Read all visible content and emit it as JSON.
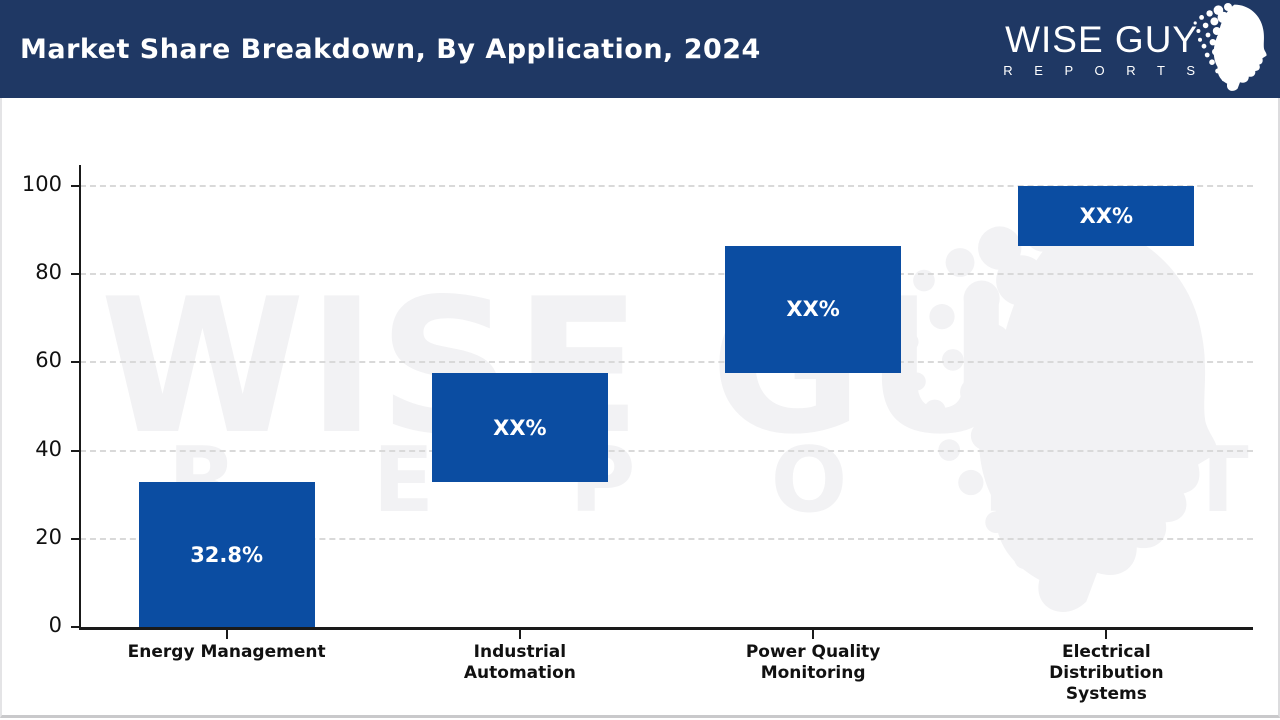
{
  "header": {
    "title": "Market Share Breakdown, By Application, 2024",
    "bg_color": "#1f3864",
    "logo": {
      "name": "WISE GUY",
      "subtitle": "R E P O R T S"
    }
  },
  "watermark": {
    "name": "WISE GUY",
    "subtitle": "R E P O R T S"
  },
  "chart_data": {
    "type": "bar",
    "variant": "waterfall",
    "title": "Market Share Breakdown, By Application, 2024",
    "categories": [
      "Energy Management",
      "Industrial Automation",
      "Power Quality Monitoring",
      "Electrical Distribution Systems"
    ],
    "category_label_lines": [
      [
        "Energy Management"
      ],
      [
        "Industrial",
        "Automation"
      ],
      [
        "Power Quality",
        "Monitoring"
      ],
      [
        "Electrical",
        "Distribution",
        "Systems"
      ]
    ],
    "series": [
      {
        "name": "Market share (%)",
        "segments": [
          {
            "category": "Energy Management",
            "start": 0,
            "end": 32.8,
            "label": "32.8%"
          },
          {
            "category": "Industrial Automation",
            "start": 32.8,
            "end": 57.5,
            "label": "XX%"
          },
          {
            "category": "Power Quality Monitoring",
            "start": 57.5,
            "end": 86.5,
            "label": "XX%"
          },
          {
            "category": "Electrical Distribution Systems",
            "start": 86.5,
            "end": 100,
            "label": "XX%"
          }
        ]
      }
    ],
    "ylim": [
      0,
      100
    ],
    "yticks": [
      0,
      20,
      40,
      60,
      80,
      100
    ],
    "grid": "horizontal-dashed",
    "legend": "none",
    "colors": {
      "bar": "#0b4da2",
      "bar_label": "#ffffff",
      "axis": "#1a1a1a",
      "gridline": "#d9d9d9",
      "tick_label": "#111111",
      "category_label": "#111111"
    }
  }
}
